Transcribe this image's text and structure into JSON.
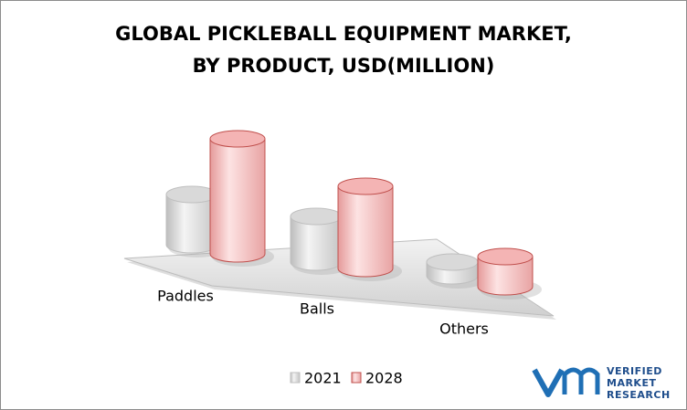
{
  "chart_data": {
    "type": "cylinder-bar",
    "title": [
      "GLOBAL PICKLEBALL EQUIPMENT MARKET,",
      "BY PRODUCT, USD(MILLION)"
    ],
    "categories": [
      "Paddles",
      "Balls",
      "Others"
    ],
    "series": [
      {
        "name": "2021",
        "color": "#d9d9d9",
        "stroke": "#bfbfbf",
        "values": [
          55,
          50,
          15
        ]
      },
      {
        "name": "2028",
        "color": "#f4b4b4",
        "stroke": "#c0504d",
        "values": [
          126,
          90,
          33
        ]
      }
    ],
    "legend": "bottom"
  },
  "logo": {
    "lines": [
      "VERIFIED",
      "MARKET",
      "RESEARCH"
    ]
  }
}
